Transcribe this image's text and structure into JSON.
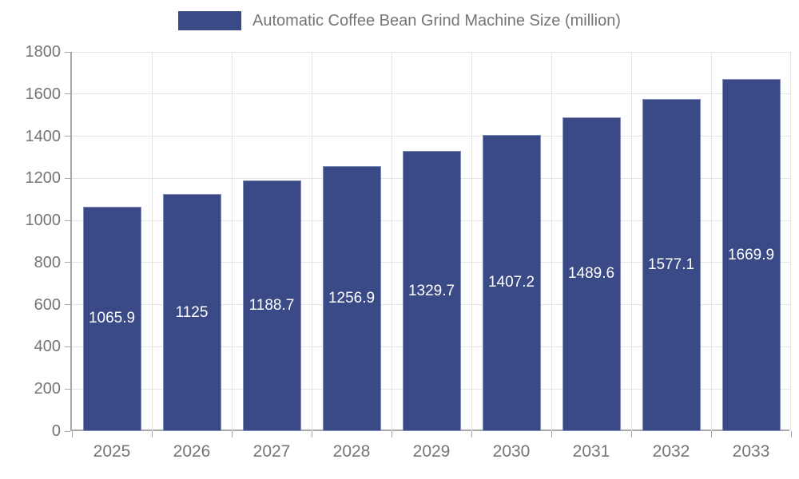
{
  "colors": {
    "bar": "#3A4A86",
    "grid": "#E4E4E4",
    "axis": "#A8A8A8",
    "tick_text": "#757575",
    "value_label": "#FFFFFF",
    "background": "#FFFFFF"
  },
  "legend": {
    "label": "Automatic Coffee Bean Grind Machine Size (million)"
  },
  "chart_data": {
    "type": "bar",
    "title": "Automatic Coffee Bean Grind Machine Size (million)",
    "categories": [
      "2025",
      "2026",
      "2027",
      "2028",
      "2029",
      "2030",
      "2031",
      "2032",
      "2033"
    ],
    "values": [
      1065.9,
      1125,
      1188.7,
      1256.9,
      1329.7,
      1407.2,
      1489.6,
      1577.1,
      1669.9
    ],
    "xlabel": "",
    "ylabel": "",
    "ylim": [
      0,
      1800
    ],
    "ytick_step": 200,
    "grid": true,
    "legend_position": "top-center",
    "value_label_position": "inside-center"
  }
}
